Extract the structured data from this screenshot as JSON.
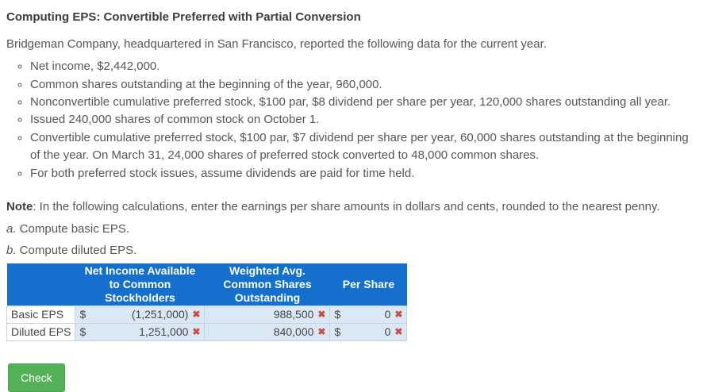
{
  "page": {
    "title": "Computing EPS: Convertible Preferred with Partial Conversion",
    "intro": "Bridgeman Company, headquartered in San Francisco, reported the following data for the current year.",
    "bullets": [
      "Net income, $2,442,000.",
      "Common shares outstanding at the beginning of the year, 960,000.",
      "Nonconvertible cumulative preferred stock, $100 par, $8 dividend per share per year, 120,000 shares outstanding all year.",
      "Issued 240,000 shares of common stock on October 1.",
      "Convertible cumulative preferred stock, $100 par, $7 dividend per share per year, 60,000 shares outstanding at the beginning of the year. On March 31, 24,000 shares of preferred stock converted to 48,000 common shares.",
      "For both preferred stock issues, assume dividends are paid for time held."
    ],
    "note_label": "Note",
    "note_rest": ": In the following calculations, enter the earnings per share amounts in dollars and cents, rounded to the nearest penny.",
    "parts": [
      {
        "label": "a.",
        "text": " Compute basic EPS."
      },
      {
        "label": "b.",
        "text": " Compute diluted EPS."
      }
    ]
  },
  "table": {
    "headers": {
      "row_label": "",
      "net_income": "Net Income Available to Common Stockholders",
      "shares": "Weighted Avg. Common Shares Outstanding",
      "per_share": "Per Share"
    },
    "rows": [
      {
        "label": "Basic EPS",
        "currency": "$",
        "net_income": "(1,251,000)",
        "shares": "988,500",
        "per_currency": "$",
        "per_share": "0"
      },
      {
        "label": "Diluted EPS",
        "currency": "$",
        "net_income": "1,251,000",
        "shares": "840,000",
        "per_currency": "$",
        "per_share": "0"
      }
    ],
    "incorrect_mark": "✖"
  },
  "check": {
    "label": "Check"
  },
  "colors": {
    "header_blue": "#1470cc",
    "cell_blue": "#d9e8f4",
    "error_red": "#cb4a4a",
    "button_green": "#55b158"
  }
}
